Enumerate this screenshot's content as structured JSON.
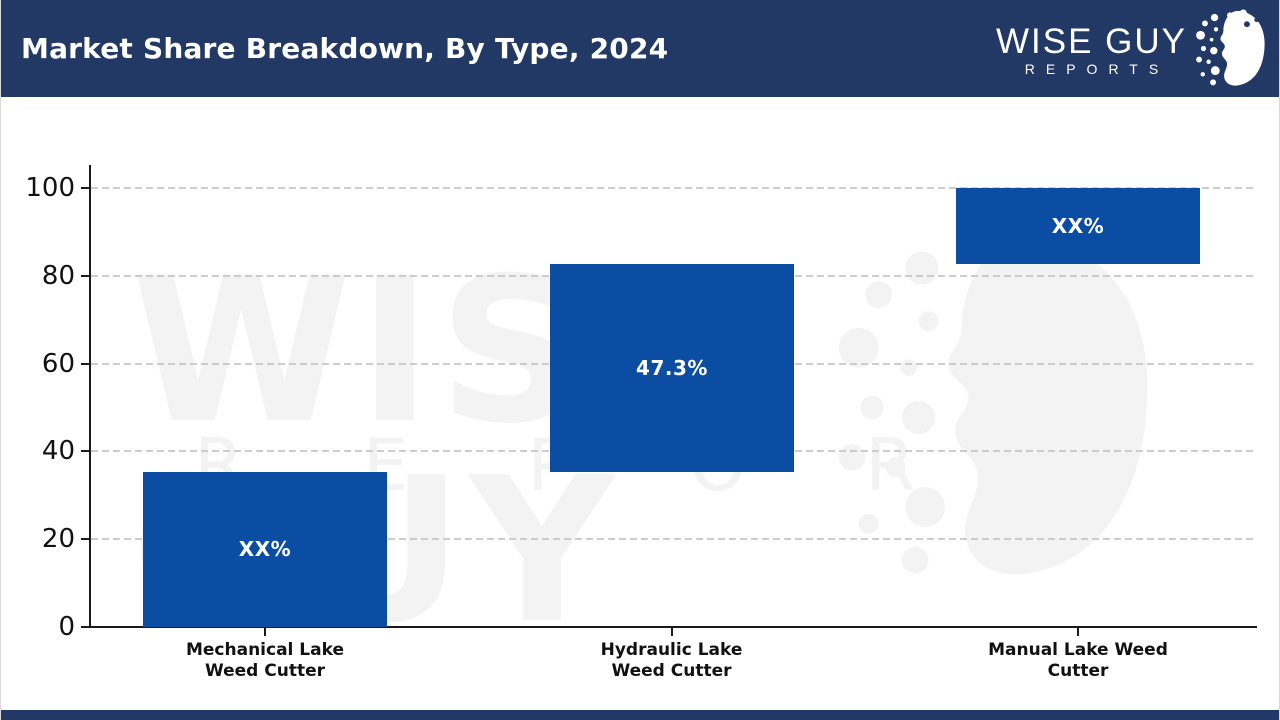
{
  "page": {
    "background": "#ffffff",
    "border_color": "#d9d9d9",
    "accent_navy": "#223965"
  },
  "header": {
    "title": "Market Share Breakdown, By Type, 2024",
    "background": "#223965",
    "logo": {
      "line1": "WISE GUY",
      "line2": "REPORTS",
      "face_icon": "dotted-head-profile"
    }
  },
  "watermark": {
    "line1": "WISE GUY",
    "line2": "R E P O R T S",
    "face_icon": "dotted-head-profile",
    "color": "#f3f3f3"
  },
  "chart_data": {
    "type": "bar",
    "subtype": "waterfall-stacked-percent",
    "title": "",
    "xlabel": "",
    "ylabel": "",
    "ylim": [
      0,
      105
    ],
    "yticks": [
      0,
      20,
      40,
      60,
      80,
      100
    ],
    "grid": {
      "horizontal": true,
      "style": "dashed",
      "color": "#cccccc"
    },
    "legend": "none",
    "bar_color": "#0b4da2",
    "bar_label_color": "#ffffff",
    "axis_color": "#1a1a1a",
    "categories": [
      {
        "lines": [
          "Mechanical Lake",
          "Weed Cutter"
        ]
      },
      {
        "lines": [
          "Hydraulic Lake",
          "Weed Cutter"
        ]
      },
      {
        "lines": [
          "Manual Lake Weed",
          "Cutter"
        ]
      }
    ],
    "segments": [
      {
        "category": "Mechanical Lake Weed Cutter",
        "start": 0,
        "end": 35.4,
        "height": 35.4,
        "label": "XX%"
      },
      {
        "category": "Hydraulic Lake Weed Cutter",
        "start": 35.4,
        "end": 82.7,
        "height": 47.3,
        "label": "47.3%"
      },
      {
        "category": "Manual Lake Weed Cutter",
        "start": 82.7,
        "end": 100,
        "height": 17.3,
        "label": "XX%"
      }
    ]
  }
}
